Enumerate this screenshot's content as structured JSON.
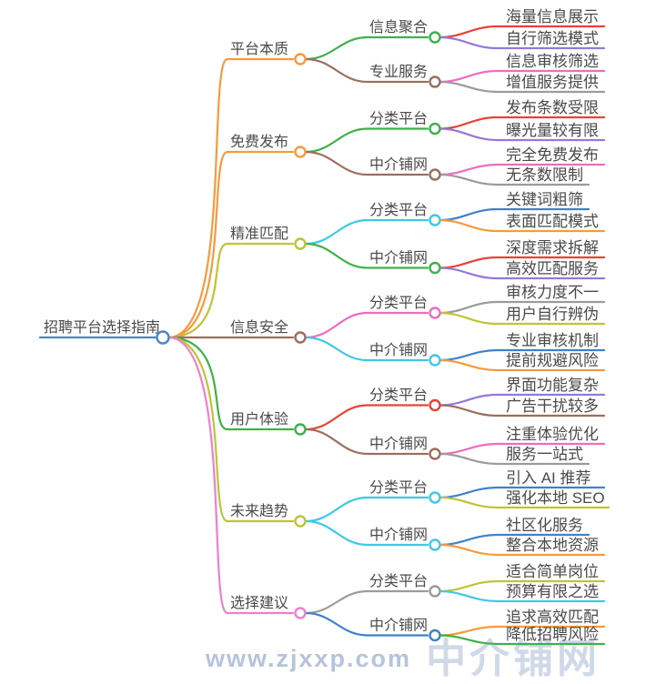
{
  "watermark": {
    "latin": "www.zjxxp.com",
    "cjk": "中介铺网"
  },
  "palette": {
    "orange": "#F79A3E",
    "green": "#3EB24A",
    "brown": "#9C6E60",
    "olive": "#BFC437",
    "cyan": "#3EC9E6",
    "pink": "#EE6CBF",
    "pinkLight": "#F07ECF",
    "red": "#E94337",
    "purple": "#9678D8",
    "gray": "#9B9B9B",
    "blue": "#3E82C8",
    "rootBlue": "#4C86C6",
    "text": "#4A4A4A"
  },
  "root": {
    "label": "招聘平台选择指南",
    "color": "rootBlue"
  },
  "branches": [
    {
      "label": "平台本质",
      "color": "orange",
      "children": [
        {
          "label": "信息聚合",
          "color": "green",
          "leaves": [
            {
              "label": "海量信息展示",
              "color": "red"
            },
            {
              "label": "自行筛选模式",
              "color": "purple"
            }
          ]
        },
        {
          "label": "专业服务",
          "color": "brown",
          "leaves": [
            {
              "label": "信息审核筛选",
              "color": "pink"
            },
            {
              "label": "增值服务提供",
              "color": "gray"
            }
          ]
        }
      ]
    },
    {
      "label": "免费发布",
      "color": "orange",
      "children": [
        {
          "label": "分类平台",
          "color": "green",
          "leaves": [
            {
              "label": "发布条数受限",
              "color": "red"
            },
            {
              "label": "曝光量较有限",
              "color": "purple"
            }
          ]
        },
        {
          "label": "中介铺网",
          "color": "brown",
          "leaves": [
            {
              "label": "完全免费发布",
              "color": "pink"
            },
            {
              "label": "无条数限制",
              "color": "gray"
            }
          ]
        }
      ]
    },
    {
      "label": "精准匹配",
      "color": "olive",
      "children": [
        {
          "label": "分类平台",
          "color": "cyan",
          "leaves": [
            {
              "label": "关键词粗筛",
              "color": "blue"
            },
            {
              "label": "表面匹配模式",
              "color": "orange"
            }
          ]
        },
        {
          "label": "中介铺网",
          "color": "green",
          "leaves": [
            {
              "label": "深度需求拆解",
              "color": "red"
            },
            {
              "label": "高效匹配服务",
              "color": "purple"
            }
          ]
        }
      ]
    },
    {
      "label": "信息安全",
      "color": "brown",
      "children": [
        {
          "label": "分类平台",
          "color": "pink",
          "leaves": [
            {
              "label": "审核力度不一",
              "color": "gray"
            },
            {
              "label": "用户自行辨伪",
              "color": "olive"
            }
          ]
        },
        {
          "label": "中介铺网",
          "color": "cyan",
          "leaves": [
            {
              "label": "专业审核机制",
              "color": "blue"
            },
            {
              "label": "提前规避风险",
              "color": "orange"
            }
          ]
        }
      ]
    },
    {
      "label": "用户体验",
      "color": "green",
      "children": [
        {
          "label": "分类平台",
          "color": "red",
          "leaves": [
            {
              "label": "界面功能复杂",
              "color": "purple"
            },
            {
              "label": "广告干扰较多",
              "color": "brown"
            }
          ]
        },
        {
          "label": "中介铺网",
          "color": "brown",
          "leaves": [
            {
              "label": "注重体验优化",
              "color": "pink"
            },
            {
              "label": "服务一站式",
              "color": "gray"
            }
          ]
        }
      ]
    },
    {
      "label": "未来趋势",
      "color": "olive",
      "children": [
        {
          "label": "分类平台",
          "color": "cyan",
          "leaves": [
            {
              "label": "引入 AI 推荐",
              "color": "blue"
            },
            {
              "label": "强化本地 SEO",
              "color": "olive"
            }
          ]
        },
        {
          "label": "中介铺网",
          "color": "cyan",
          "leaves": [
            {
              "label": "社区化服务",
              "color": "blue"
            },
            {
              "label": "整合本地资源",
              "color": "orange"
            }
          ]
        }
      ]
    },
    {
      "label": "选择建议",
      "color": "pinkLight",
      "children": [
        {
          "label": "分类平台",
          "color": "gray",
          "leaves": [
            {
              "label": "适合简单岗位",
              "color": "olive"
            },
            {
              "label": "预算有限之选",
              "color": "cyan"
            }
          ]
        },
        {
          "label": "中介铺网",
          "color": "blue",
          "leaves": [
            {
              "label": "追求高效匹配",
              "color": "orange"
            },
            {
              "label": "降低招聘风险",
              "color": "green"
            }
          ]
        }
      ]
    }
  ]
}
